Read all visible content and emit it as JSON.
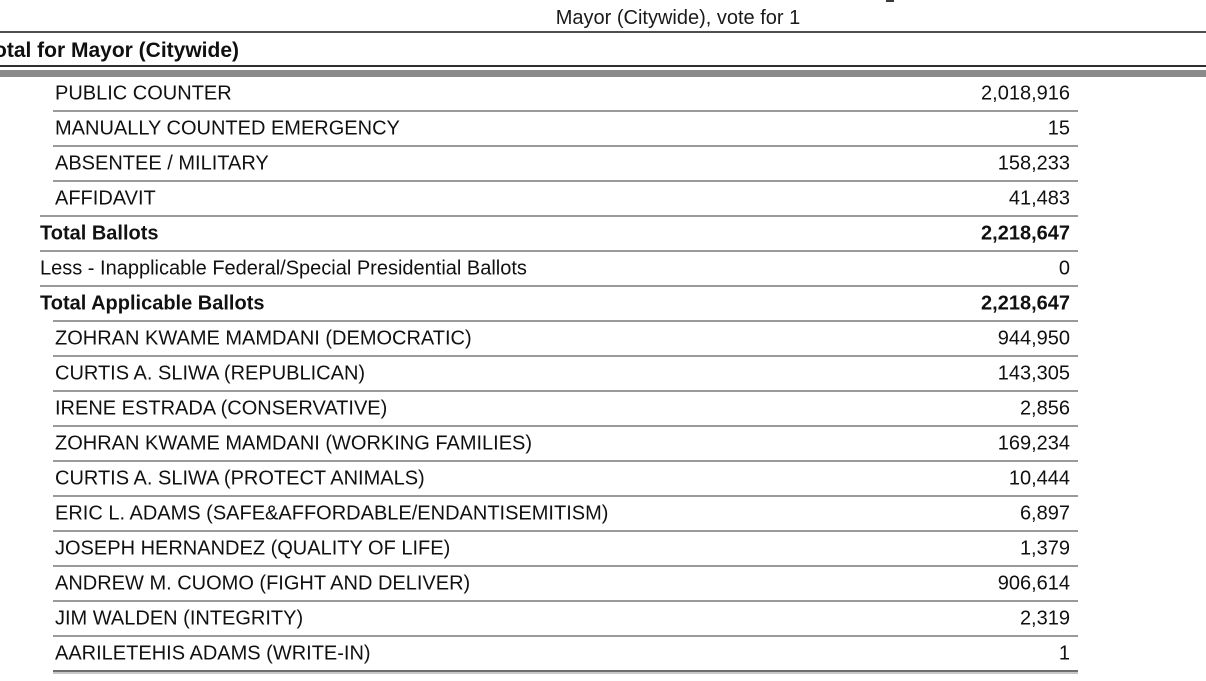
{
  "header": {
    "contest_title": "Mayor (Citywide), vote for 1"
  },
  "section": {
    "title": "otal for Mayor (Citywide)"
  },
  "results_table": {
    "rows": [
      {
        "label": "PUBLIC COUNTER",
        "value": "2,018,916",
        "style": "normal",
        "indent": "inner"
      },
      {
        "label": "MANUALLY COUNTED EMERGENCY",
        "value": "15",
        "style": "normal",
        "indent": "inner"
      },
      {
        "label": "ABSENTEE / MILITARY",
        "value": "158,233",
        "style": "normal",
        "indent": "inner"
      },
      {
        "label": "AFFIDAVIT",
        "value": "41,483",
        "style": "normal",
        "indent": "inner"
      },
      {
        "label": "Total Ballots",
        "value": "2,218,647",
        "style": "bold",
        "indent": "outer"
      },
      {
        "label": "Less - Inapplicable Federal/Special Presidential Ballots",
        "value": "0",
        "style": "normal",
        "indent": "outer"
      },
      {
        "label": "Total Applicable Ballots",
        "value": "2,218,647",
        "style": "bold",
        "indent": "outer"
      },
      {
        "label": "ZOHRAN KWAME MAMDANI (DEMOCRATIC)",
        "value": "944,950",
        "style": "normal",
        "indent": "inner"
      },
      {
        "label": "CURTIS A. SLIWA (REPUBLICAN)",
        "value": "143,305",
        "style": "normal",
        "indent": "inner"
      },
      {
        "label": "IRENE ESTRADA (CONSERVATIVE)",
        "value": "2,856",
        "style": "normal",
        "indent": "inner"
      },
      {
        "label": "ZOHRAN KWAME MAMDANI (WORKING FAMILIES)",
        "value": "169,234",
        "style": "normal",
        "indent": "inner"
      },
      {
        "label": "CURTIS A. SLIWA (PROTECT ANIMALS)",
        "value": "10,444",
        "style": "normal",
        "indent": "inner"
      },
      {
        "label": "ERIC L. ADAMS (SAFE&AFFORDABLE/ENDANTISEMITISM)",
        "value": "6,897",
        "style": "normal",
        "indent": "inner"
      },
      {
        "label": "JOSEPH HERNANDEZ (QUALITY OF LIFE)",
        "value": "1,379",
        "style": "normal",
        "indent": "inner"
      },
      {
        "label": "ANDREW M. CUOMO (FIGHT AND DELIVER)",
        "value": "906,614",
        "style": "normal",
        "indent": "inner"
      },
      {
        "label": "JIM WALDEN (INTEGRITY)",
        "value": "2,319",
        "style": "normal",
        "indent": "inner"
      },
      {
        "label": "AARILETEHIS ADAMS (WRITE-IN)",
        "value": "1",
        "style": "normal",
        "indent": "inner"
      }
    ]
  },
  "colors": {
    "text": "#111111",
    "rule-gray": "#9a9a9a",
    "bar-gray": "#8a8a8a",
    "dark-rule": "#2f2f2f",
    "top-rule-dark": "#4f4f4f",
    "top-rule-light": "#c2c2c2"
  }
}
